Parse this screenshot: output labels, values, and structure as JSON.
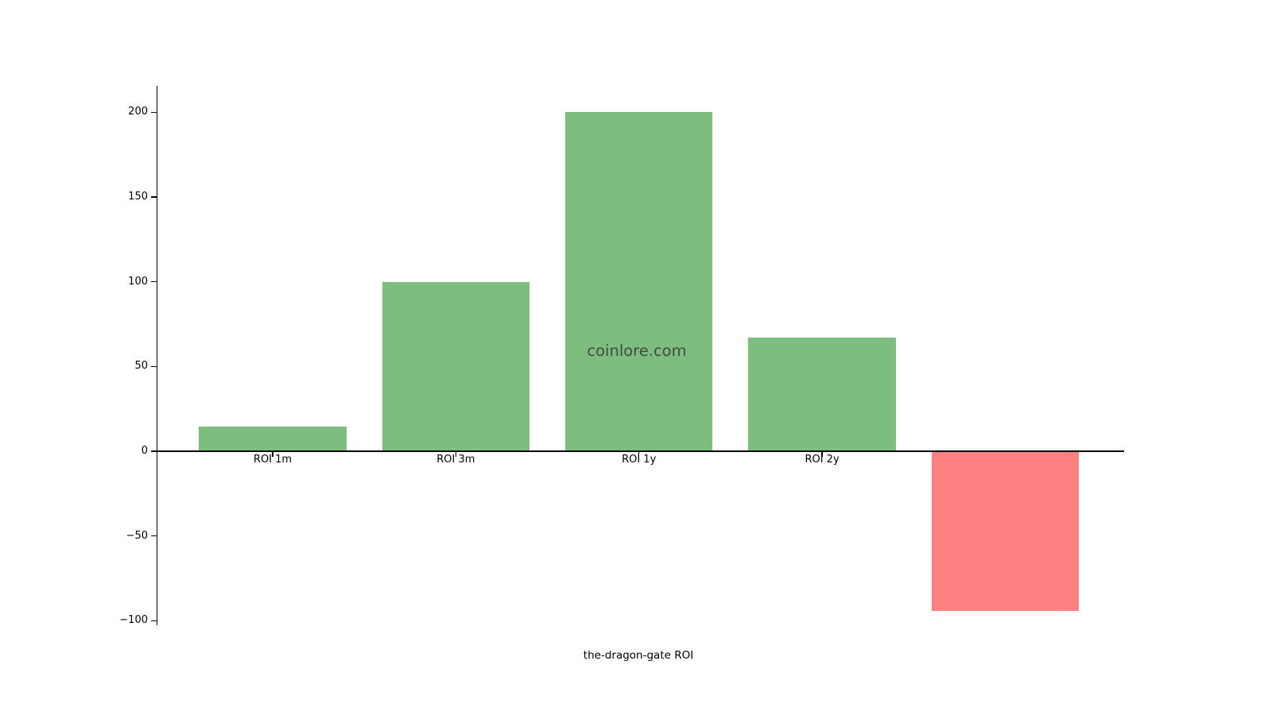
{
  "chart_data": {
    "type": "bar",
    "title": "the-dragon-gate ROI",
    "watermark": "coinlore.com",
    "categories": [
      "ROI 1m",
      "ROI 3m",
      "ROI 1y",
      "ROI 2y",
      ""
    ],
    "values": [
      14.5,
      100,
      200,
      67,
      -94
    ],
    "bar_colors": [
      "#7dbe7e",
      "#7dbe7e",
      "#7dbe7e",
      "#7dbe7e",
      "#ff8080"
    ],
    "positive_color": "#7dbe7e",
    "negative_color": "#ff8080",
    "xlabel": "",
    "ylabel": "",
    "ytick_values": [
      200,
      150,
      100,
      50,
      0,
      -50,
      -100
    ],
    "ytick_labels": [
      "200",
      "150",
      "100",
      "50",
      "0",
      "−50",
      "−100"
    ],
    "ylim": [
      -102.5,
      215.6
    ],
    "grid": false,
    "legend": null,
    "axis_color": "#000000",
    "background_color": "#ffffff"
  }
}
